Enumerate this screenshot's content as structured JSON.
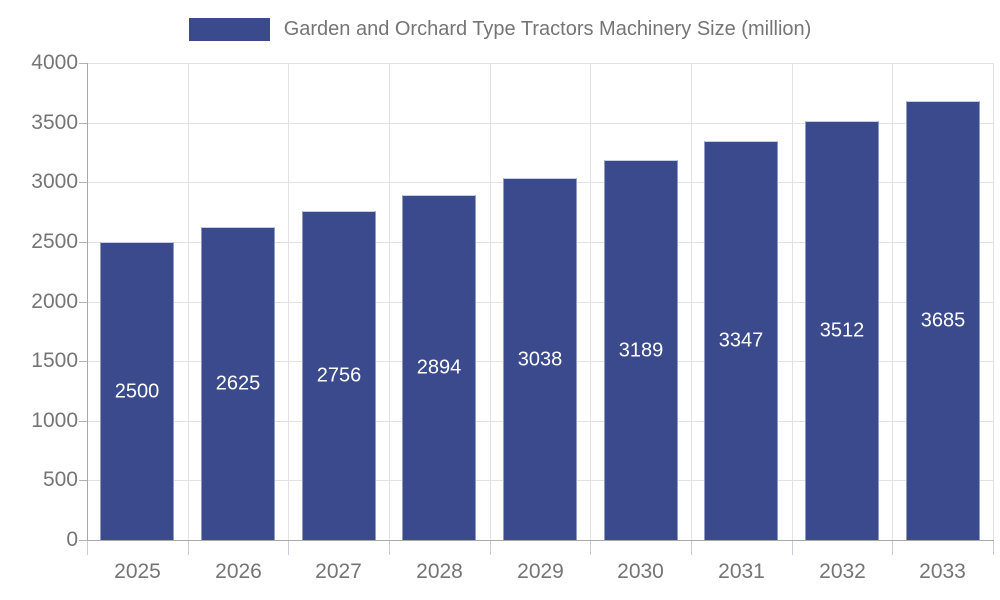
{
  "chart_data": {
    "type": "bar",
    "title": "Garden and Orchard Type Tractors Machinery Size (million)",
    "legend_entries": [
      "Garden and Orchard Type Tractors Machinery Size (million)"
    ],
    "legend_position": "top",
    "categories": [
      "2025",
      "2026",
      "2027",
      "2028",
      "2029",
      "2030",
      "2031",
      "2032",
      "2033"
    ],
    "values": [
      2500,
      2625,
      2756,
      2894,
      3038,
      3189,
      3347,
      3512,
      3685
    ],
    "bar_value_labels": [
      "2500",
      "2625",
      "2756",
      "2894",
      "3038",
      "3189",
      "3347",
      "3512",
      "3685"
    ],
    "xlabel": "",
    "ylabel": "",
    "ylim": [
      0,
      4000
    ],
    "yticks": [
      0,
      500,
      1000,
      1500,
      2000,
      2500,
      3000,
      3500,
      4000
    ],
    "grid": true,
    "colors": {
      "bar": "#3A4A8C",
      "bar_label_text": "#FFFFFF",
      "axis_text": "#757575",
      "grid_line": "#E2E2E2",
      "axis_line": "#A8A8A8"
    }
  }
}
